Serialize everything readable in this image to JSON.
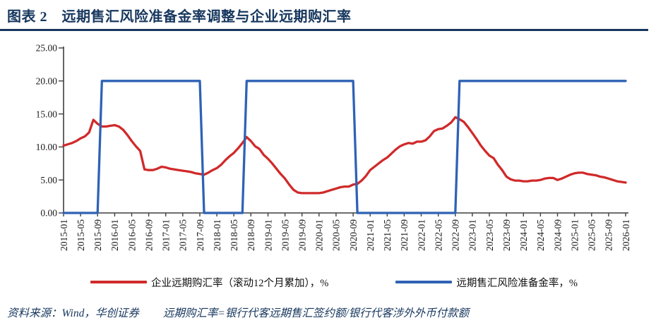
{
  "page": {
    "title": "图表 2　远期售汇风险准备金率调整与企业远期购汇率",
    "source_prefix": "资料来源：Wind，华创证券",
    "source_note": "远期购汇率=银行代客远期售汇签约额/银行代客涉外外币付款额"
  },
  "colors": {
    "title_text": "#17375E",
    "underline": "#17375E",
    "source_text": "#17375E",
    "axis": "#3f3f3f",
    "tick_text": "#1a1a1a",
    "series_red": "#D02A2A",
    "series_blue": "#2F62B5",
    "background": "#FFFFFF"
  },
  "chart_data": {
    "type": "line",
    "title": "图表 2　远期售汇风险准备金率调整与企业远期购汇率",
    "xlabel": "",
    "ylabel": "",
    "x_monthly_start": "2015-01",
    "x_monthly_end": "2026-01",
    "x_tick_interval_months": 4,
    "x_tick_labels": [
      "2015-01",
      "2015-05",
      "2015-09",
      "2016-01",
      "2016-05",
      "2016-09",
      "2017-01",
      "2017-05",
      "2017-09",
      "2018-01",
      "2018-05",
      "2018-09",
      "2019-01",
      "2019-05",
      "2019-09",
      "2020-01",
      "2020-05",
      "2020-09",
      "2021-01",
      "2021-05",
      "2021-09",
      "2022-01",
      "2022-05",
      "2022-09",
      "2023-01",
      "2023-05",
      "2023-09",
      "2024-01",
      "2024-05",
      "2024-09",
      "2025-01",
      "2025-05",
      "2025-09",
      "2026-01"
    ],
    "ylim": [
      0,
      25
    ],
    "y_ticks": [
      "0.00",
      "5.00",
      "10.00",
      "15.00",
      "20.00",
      "25.00"
    ],
    "grid": false,
    "legend_position": "bottom",
    "series": [
      {
        "name": "企业远期购汇率（滚动12个月累加），%",
        "color": "#D02A2A",
        "values": [
          10.2,
          10.4,
          10.6,
          10.9,
          11.3,
          11.6,
          12.2,
          14.1,
          13.5,
          13.1,
          13.1,
          13.2,
          13.3,
          13.1,
          12.6,
          11.8,
          10.9,
          10.1,
          9.4,
          6.6,
          6.5,
          6.5,
          6.7,
          7.0,
          6.9,
          6.7,
          6.6,
          6.5,
          6.4,
          6.3,
          6.2,
          6.0,
          5.9,
          5.8,
          6.1,
          6.5,
          6.8,
          7.3,
          8.0,
          8.6,
          9.1,
          9.8,
          10.6,
          11.5,
          10.9,
          10.1,
          9.7,
          8.8,
          8.2,
          7.5,
          6.7,
          5.9,
          5.2,
          4.3,
          3.5,
          3.1,
          3.0,
          3.0,
          3.0,
          3.0,
          3.0,
          3.1,
          3.3,
          3.5,
          3.7,
          3.9,
          4.0,
          4.0,
          4.3,
          4.4,
          4.9,
          5.6,
          6.5,
          7.0,
          7.5,
          8.0,
          8.4,
          9.0,
          9.6,
          10.1,
          10.4,
          10.6,
          10.5,
          10.8,
          10.8,
          11.0,
          11.6,
          12.4,
          12.7,
          12.8,
          13.2,
          13.7,
          14.5,
          14.2,
          13.8,
          13.0,
          12.1,
          11.2,
          10.2,
          9.4,
          8.7,
          8.3,
          7.3,
          6.5,
          5.5,
          5.1,
          4.9,
          4.9,
          4.8,
          4.8,
          4.9,
          4.9,
          5.0,
          5.2,
          5.3,
          5.3,
          5.0,
          5.2,
          5.5,
          5.8,
          6.0,
          6.1,
          6.1,
          5.9,
          5.8,
          5.7,
          5.5,
          5.4,
          5.2,
          5.0,
          4.8,
          4.7,
          4.6
        ]
      },
      {
        "name": "远期售汇风险准备金率，%",
        "color": "#2F62B5",
        "values": [
          0,
          0,
          0,
          0,
          0,
          0,
          0,
          0,
          0,
          20,
          20,
          20,
          20,
          20,
          20,
          20,
          20,
          20,
          20,
          20,
          20,
          20,
          20,
          20,
          20,
          20,
          20,
          20,
          20,
          20,
          20,
          20,
          20,
          0,
          0,
          0,
          0,
          0,
          0,
          0,
          0,
          0,
          0,
          20,
          20,
          20,
          20,
          20,
          20,
          20,
          20,
          20,
          20,
          20,
          20,
          20,
          20,
          20,
          20,
          20,
          20,
          20,
          20,
          20,
          20,
          20,
          20,
          20,
          20,
          0,
          0,
          0,
          0,
          0,
          0,
          0,
          0,
          0,
          0,
          0,
          0,
          0,
          0,
          0,
          0,
          0,
          0,
          0,
          0,
          0,
          0,
          0,
          0,
          20,
          20,
          20,
          20,
          20,
          20,
          20,
          20,
          20,
          20,
          20,
          20,
          20,
          20,
          20,
          20,
          20,
          20,
          20,
          20,
          20,
          20,
          20,
          20,
          20,
          20,
          20,
          20,
          20,
          20,
          20,
          20,
          20,
          20,
          20,
          20,
          20,
          20,
          20,
          20
        ]
      }
    ]
  }
}
